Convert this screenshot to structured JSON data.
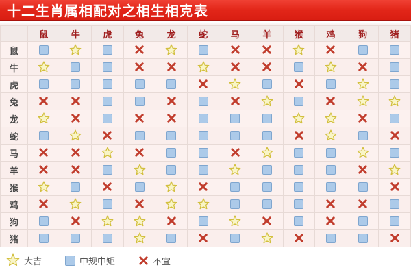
{
  "chart_data": {
    "type": "table",
    "title": "十二生肖属相配对之相生相克表",
    "columns": [
      "鼠",
      "牛",
      "虎",
      "兔",
      "龙",
      "蛇",
      "马",
      "羊",
      "猴",
      "鸡",
      "狗",
      "猪"
    ],
    "rows": [
      {
        "label": "鼠",
        "cells": [
          "square",
          "star",
          "square",
          "cross",
          "star",
          "square",
          "cross",
          "cross",
          "star",
          "cross",
          "square",
          "square"
        ]
      },
      {
        "label": "牛",
        "cells": [
          "star",
          "square",
          "square",
          "cross",
          "cross",
          "star",
          "cross",
          "cross",
          "square",
          "star",
          "cross",
          "square"
        ]
      },
      {
        "label": "虎",
        "cells": [
          "square",
          "square",
          "square",
          "square",
          "square",
          "cross",
          "star",
          "square",
          "cross",
          "square",
          "star",
          "square"
        ]
      },
      {
        "label": "兔",
        "cells": [
          "cross",
          "cross",
          "square",
          "square",
          "cross",
          "square",
          "cross",
          "star",
          "square",
          "cross",
          "star",
          "star"
        ]
      },
      {
        "label": "龙",
        "cells": [
          "star",
          "cross",
          "square",
          "cross",
          "cross",
          "square",
          "square",
          "square",
          "star",
          "star",
          "cross",
          "square"
        ]
      },
      {
        "label": "蛇",
        "cells": [
          "square",
          "star",
          "cross",
          "square",
          "square",
          "square",
          "square",
          "square",
          "cross",
          "star",
          "square",
          "cross"
        ]
      },
      {
        "label": "马",
        "cells": [
          "cross",
          "cross",
          "star",
          "cross",
          "square",
          "square",
          "cross",
          "star",
          "square",
          "square",
          "star",
          "square"
        ]
      },
      {
        "label": "羊",
        "cells": [
          "cross",
          "cross",
          "square",
          "star",
          "square",
          "square",
          "star",
          "square",
          "square",
          "square",
          "cross",
          "star"
        ]
      },
      {
        "label": "猴",
        "cells": [
          "star",
          "square",
          "cross",
          "square",
          "star",
          "cross",
          "square",
          "square",
          "square",
          "square",
          "square",
          "cross"
        ]
      },
      {
        "label": "鸡",
        "cells": [
          "cross",
          "star",
          "square",
          "cross",
          "star",
          "star",
          "square",
          "square",
          "square",
          "cross",
          "cross",
          "square"
        ]
      },
      {
        "label": "狗",
        "cells": [
          "square",
          "cross",
          "star",
          "star",
          "cross",
          "square",
          "star",
          "cross",
          "square",
          "cross",
          "square",
          "square"
        ]
      },
      {
        "label": "猪",
        "cells": [
          "square",
          "square",
          "square",
          "star",
          "square",
          "cross",
          "square",
          "star",
          "cross",
          "square",
          "square",
          "cross"
        ]
      }
    ],
    "legend": [
      {
        "symbol": "star",
        "label": "大吉"
      },
      {
        "symbol": "square",
        "label": "中规中矩"
      },
      {
        "symbol": "cross",
        "label": "不宜"
      }
    ]
  },
  "colors": {
    "banner_top": "#f04134",
    "banner_red": "#e22619",
    "header_text": "#a02020",
    "cell_bg": "#fcf1ef",
    "star_fill": "#f9f5c6",
    "star_stroke": "#d2bf3e",
    "square_fill": "#accae9",
    "square_stroke": "#7fa6cf",
    "cross_color": "#c13d2d"
  }
}
